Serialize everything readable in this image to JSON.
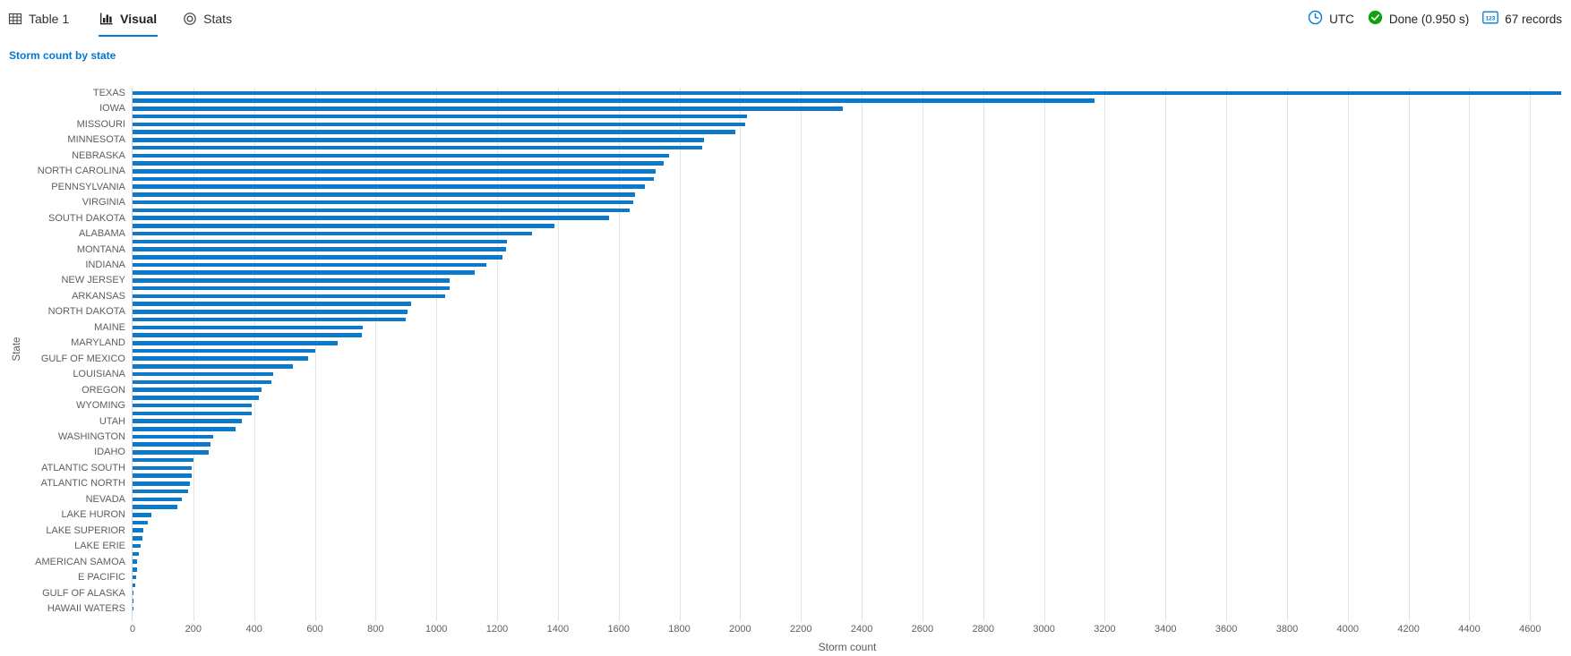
{
  "tabs": {
    "items": [
      {
        "label": "Table 1",
        "icon": "table-icon",
        "active": false
      },
      {
        "label": "Visual",
        "icon": "bar-chart-icon",
        "active": true
      },
      {
        "label": "Stats",
        "icon": "stats-donut-icon",
        "active": false
      }
    ]
  },
  "status_bar": {
    "timezone_label": "UTC",
    "status_label": "Done (0.950 s)",
    "records_label": "67 records",
    "accent_color": "#0078d4",
    "success_color": "#13a10e"
  },
  "chart_title": "Storm count by state",
  "chart_data": {
    "type": "bar",
    "orientation": "horizontal",
    "title": "Storm count by state",
    "xlabel": "Storm count",
    "ylabel": "State",
    "xlim": [
      0,
      4700
    ],
    "x_ticks": [
      0,
      200,
      400,
      600,
      800,
      1000,
      1200,
      1400,
      1600,
      1800,
      2000,
      2200,
      2400,
      2600,
      2800,
      3000,
      3200,
      3400,
      3600,
      3800,
      4000,
      4200,
      4400,
      4600
    ],
    "grid": true,
    "legend": "none",
    "bar_color": "#0c79ca",
    "label_policy": "67 bars total; y-axis shows a label for every second bar only (labels read off screen; unlabeled bars have empty label)",
    "rows": [
      {
        "label": "TEXAS",
        "value": 4701
      },
      {
        "label": "",
        "value": 3166
      },
      {
        "label": "IOWA",
        "value": 2337
      },
      {
        "label": "",
        "value": 2022
      },
      {
        "label": "MISSOURI",
        "value": 2016
      },
      {
        "label": "",
        "value": 1983
      },
      {
        "label": "MINNESOTA",
        "value": 1881
      },
      {
        "label": "",
        "value": 1874
      },
      {
        "label": "NEBRASKA",
        "value": 1766
      },
      {
        "label": "",
        "value": 1749
      },
      {
        "label": "NORTH CAROLINA",
        "value": 1721
      },
      {
        "label": "",
        "value": 1715
      },
      {
        "label": "PENNSYLVANIA",
        "value": 1687
      },
      {
        "label": "",
        "value": 1655
      },
      {
        "label": "VIRGINIA",
        "value": 1647
      },
      {
        "label": "",
        "value": 1637
      },
      {
        "label": "SOUTH DAKOTA",
        "value": 1567
      },
      {
        "label": "",
        "value": 1390
      },
      {
        "label": "ALABAMA",
        "value": 1315
      },
      {
        "label": "",
        "value": 1233
      },
      {
        "label": "MONTANA",
        "value": 1230
      },
      {
        "label": "",
        "value": 1219
      },
      {
        "label": "INDIANA",
        "value": 1164
      },
      {
        "label": "",
        "value": 1126
      },
      {
        "label": "NEW JERSEY",
        "value": 1044
      },
      {
        "label": "",
        "value": 1043
      },
      {
        "label": "ARKANSAS",
        "value": 1028
      },
      {
        "label": "",
        "value": 916
      },
      {
        "label": "NORTH DAKOTA",
        "value": 905
      },
      {
        "label": "",
        "value": 899
      },
      {
        "label": "MAINE",
        "value": 757
      },
      {
        "label": "",
        "value": 756
      },
      {
        "label": "MARYLAND",
        "value": 676
      },
      {
        "label": "",
        "value": 602
      },
      {
        "label": "GULF OF MEXICO",
        "value": 577
      },
      {
        "label": "",
        "value": 529
      },
      {
        "label": "LOUISIANA",
        "value": 463
      },
      {
        "label": "",
        "value": 457
      },
      {
        "label": "OREGON",
        "value": 424
      },
      {
        "label": "",
        "value": 415
      },
      {
        "label": "WYOMING",
        "value": 393
      },
      {
        "label": "",
        "value": 392
      },
      {
        "label": "UTAH",
        "value": 360
      },
      {
        "label": "",
        "value": 340
      },
      {
        "label": "WASHINGTON",
        "value": 264
      },
      {
        "label": "",
        "value": 257
      },
      {
        "label": "IDAHO",
        "value": 250
      },
      {
        "label": "",
        "value": 201
      },
      {
        "label": "ATLANTIC SOUTH",
        "value": 196
      },
      {
        "label": "",
        "value": 195
      },
      {
        "label": "ATLANTIC NORTH",
        "value": 188
      },
      {
        "label": "",
        "value": 184
      },
      {
        "label": "NEVADA",
        "value": 163
      },
      {
        "label": "",
        "value": 148
      },
      {
        "label": "LAKE HURON",
        "value": 63
      },
      {
        "label": "",
        "value": 51
      },
      {
        "label": "LAKE SUPERIOR",
        "value": 34
      },
      {
        "label": "",
        "value": 32
      },
      {
        "label": "LAKE ERIE",
        "value": 27
      },
      {
        "label": "",
        "value": 21
      },
      {
        "label": "AMERICAN SAMOA",
        "value": 16
      },
      {
        "label": "",
        "value": 14
      },
      {
        "label": "E PACIFIC",
        "value": 11
      },
      {
        "label": "",
        "value": 10
      },
      {
        "label": "GULF OF ALASKA",
        "value": 4
      },
      {
        "label": "",
        "value": 3
      },
      {
        "label": "HAWAII WATERS",
        "value": 2
      }
    ]
  }
}
